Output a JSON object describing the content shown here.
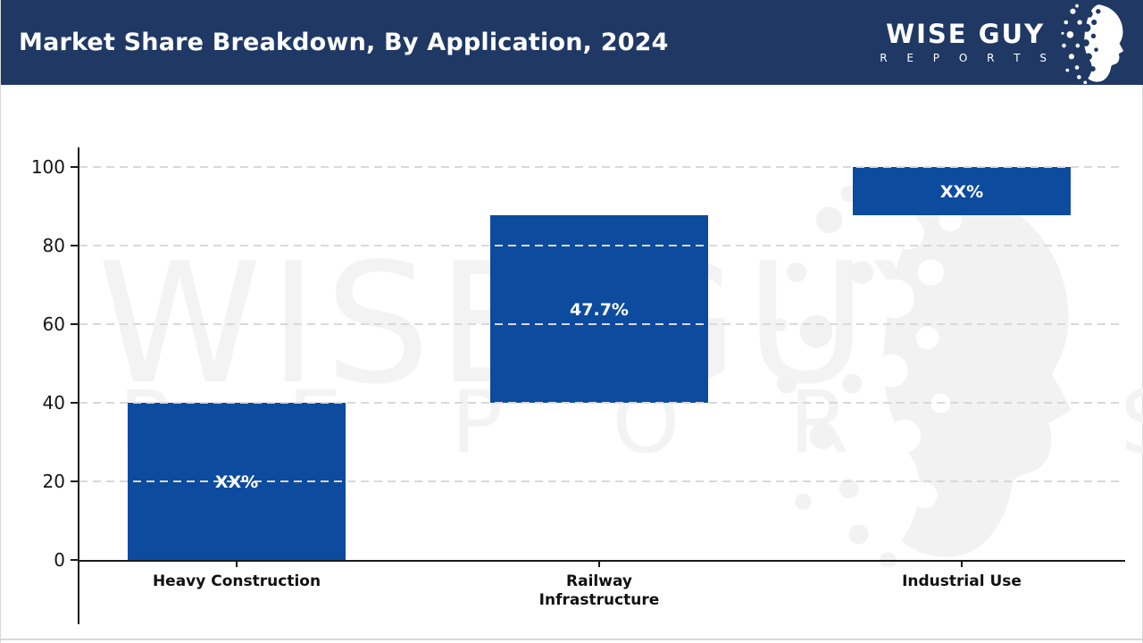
{
  "header": {
    "title": "Market Share Breakdown, By Application, 2024",
    "background_color": "#1f3864",
    "logo": {
      "primary": "WISE GUY",
      "secondary": "R E P O R T S",
      "icon": "dotted-face-profile-icon"
    }
  },
  "watermark": {
    "line1": "WISE GUY",
    "line2": "R E P O R T S"
  },
  "chart_data": {
    "type": "bar",
    "subtype": "waterfall",
    "title": "Market Share Breakdown, By Application, 2024",
    "categories": [
      "Heavy Construction",
      "Railway Infrastructure",
      "Industrial Use"
    ],
    "category_lines": [
      [
        "Heavy Construction"
      ],
      [
        "Railway",
        "Infrastructure"
      ],
      [
        "Industrial Use"
      ]
    ],
    "series": [
      {
        "name": "Market Share %",
        "values": [
          40,
          47.7,
          12.3
        ]
      }
    ],
    "bar_labels": [
      "XX%",
      "47.7%",
      "XX%"
    ],
    "bar_color": "#0d4b9e",
    "bar_label_color": "#ffffff",
    "xlabel": "",
    "ylabel": "",
    "ylim": [
      0,
      100
    ],
    "yticks": [
      0,
      20,
      40,
      60,
      80,
      100
    ],
    "grid": "horizontal dashed, drawn over bars",
    "legend": "none"
  }
}
